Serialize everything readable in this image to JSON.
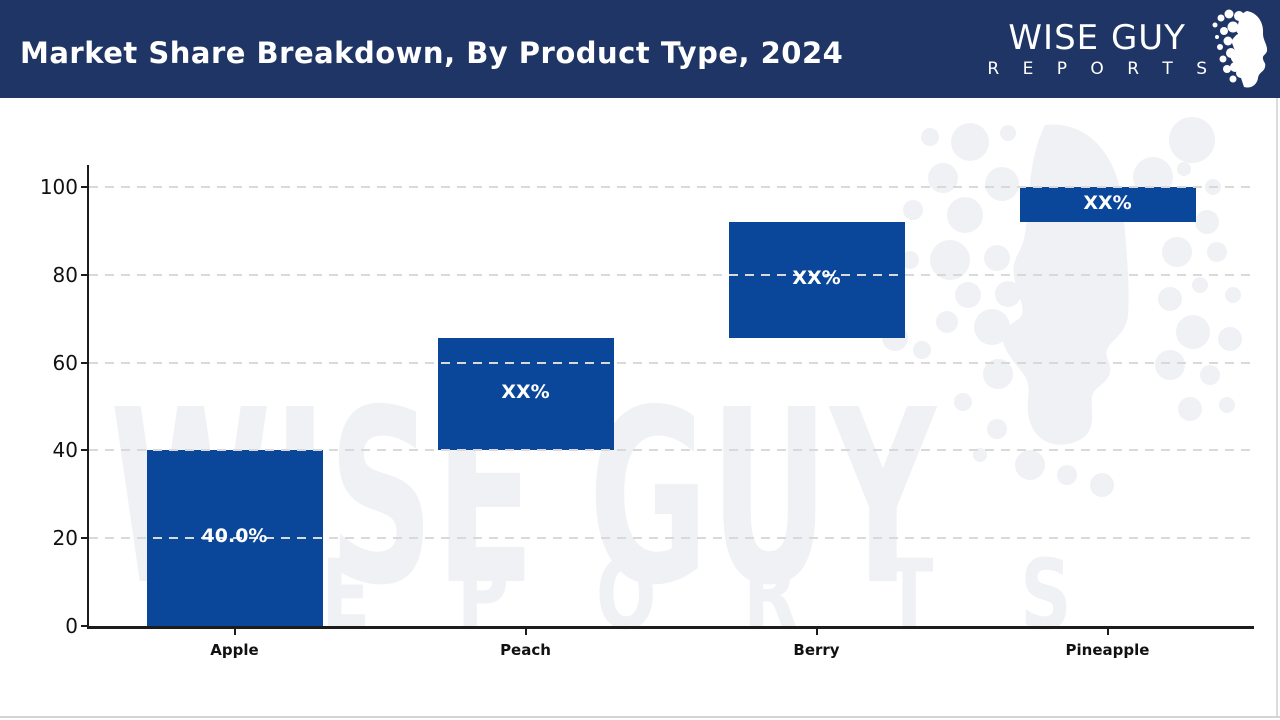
{
  "header": {
    "title": "Market Share Breakdown, By Product Type, 2024",
    "logo": {
      "line1": "WISE GUY",
      "line2": "REPORTS"
    }
  },
  "watermark": {
    "line1": "WISE GUY",
    "line2": "REPORTS"
  },
  "colors": {
    "header_bg": "#1f3565",
    "bar": "#0a4699",
    "grid": "#d9d9d9",
    "axis": "#1c1c1c",
    "bar_label_text": "#ffffff",
    "watermark": "#f0f1f4"
  },
  "chart_data": {
    "type": "waterfall",
    "title": "Market Share Breakdown, By Product Type, 2024",
    "categories": [
      "Apple",
      "Peach",
      "Berry",
      "Pineapple"
    ],
    "segments": [
      {
        "category": "Apple",
        "start": 0,
        "end": 40,
        "value": 40,
        "label": "40.0%"
      },
      {
        "category": "Peach",
        "start": 40,
        "end": 65.5,
        "value": 25.5,
        "label": "XX%"
      },
      {
        "category": "Berry",
        "start": 65.5,
        "end": 92,
        "value": 26.5,
        "label": "XX%"
      },
      {
        "category": "Pineapple",
        "start": 92,
        "end": 100,
        "value": 8,
        "label": "XX%"
      }
    ],
    "yticks": [
      0,
      20,
      40,
      60,
      80,
      100
    ],
    "ylim": [
      0,
      105
    ],
    "xlabel": "",
    "ylabel": "",
    "grid": "horizontal-dashed",
    "legend": "none",
    "bar_color": "#0a4699"
  }
}
